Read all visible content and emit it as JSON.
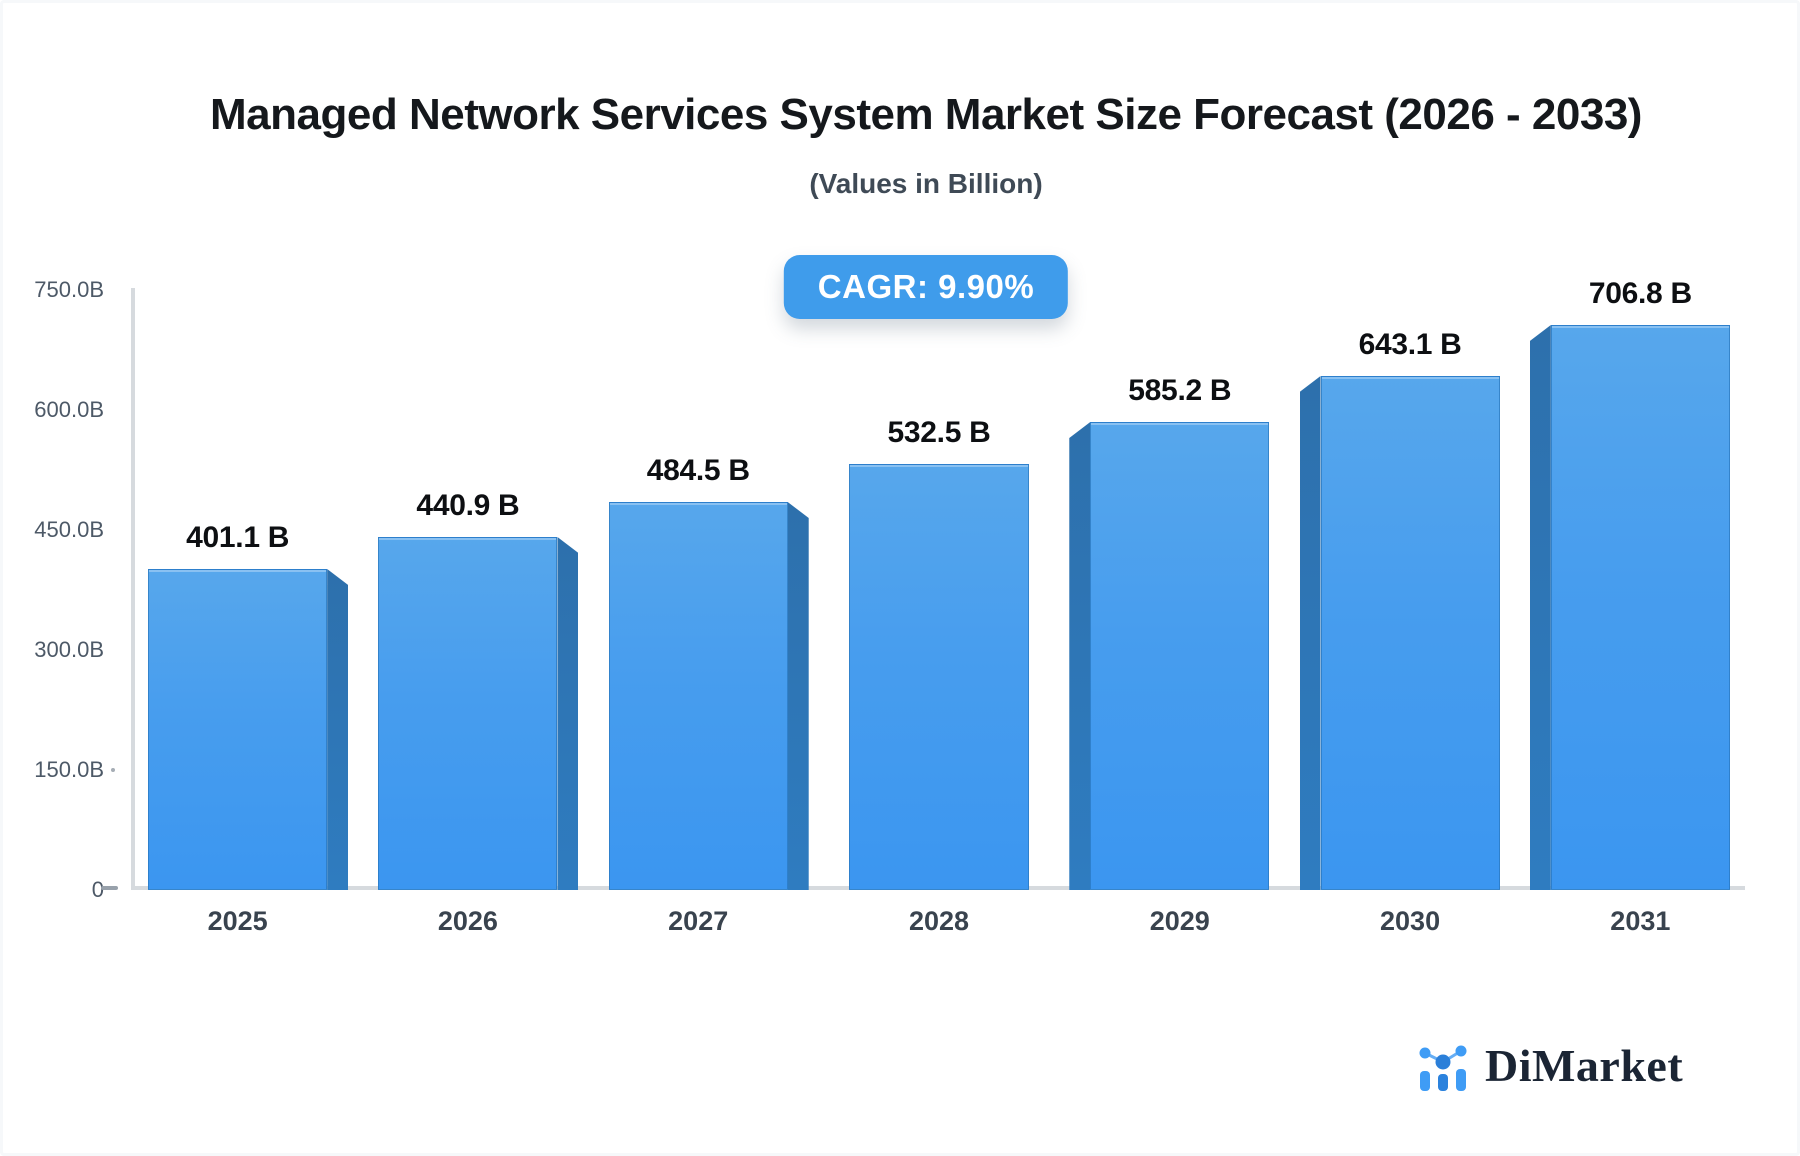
{
  "title": "Managed Network Services System Market Size Forecast (2026 - 2033)",
  "subtitle": "(Values in Billion)",
  "cagr_badge_label": "CAGR: 9.90%",
  "chart_data": {
    "type": "bar",
    "title": "Managed Network Services System Market Size Forecast (2026 - 2033)",
    "subtitle": "(Values in Billion)",
    "xlabel": "",
    "ylabel": "",
    "categories": [
      "2025",
      "2026",
      "2027",
      "2028",
      "2029",
      "2030",
      "2031"
    ],
    "values": [
      401.1,
      440.9,
      484.5,
      532.5,
      585.2,
      643.1,
      706.8
    ],
    "value_labels": [
      "401.1 B",
      "440.9 B",
      "484.5 B",
      "532.5 B",
      "585.2 B",
      "643.1 B",
      "706.8 B"
    ],
    "ylim": [
      0,
      750
    ],
    "y_tick_values": [
      0,
      150,
      300,
      450,
      600,
      750
    ],
    "y_tick_labels": [
      "0",
      "150.0B",
      "300.0B",
      "450.0B",
      "600.0B",
      "750.0B"
    ],
    "grid": "off",
    "legend": "none",
    "annotation": "CAGR: 9.90%",
    "bar_style": "3d",
    "colors": {
      "bar_front_top": "#57a7ec",
      "bar_front_bottom": "#3b96f0",
      "bar_side": "#2e74b2",
      "badge_background": "#3f9ceb",
      "badge_text": "#ffffff",
      "axis_line": "#d6dade",
      "title_text": "#15181c",
      "subtitle_text": "#3f4a56",
      "tick_text": "#4d5967",
      "category_text": "#39434e",
      "value_text": "#0d0f12"
    }
  },
  "logo": {
    "text": "DiMarket",
    "icon": "mini-bar-chart-icon",
    "text_color": "#1b2534",
    "icon_blue": "#3f9cf5",
    "icon_dark_blue": "#2b7fd9"
  }
}
